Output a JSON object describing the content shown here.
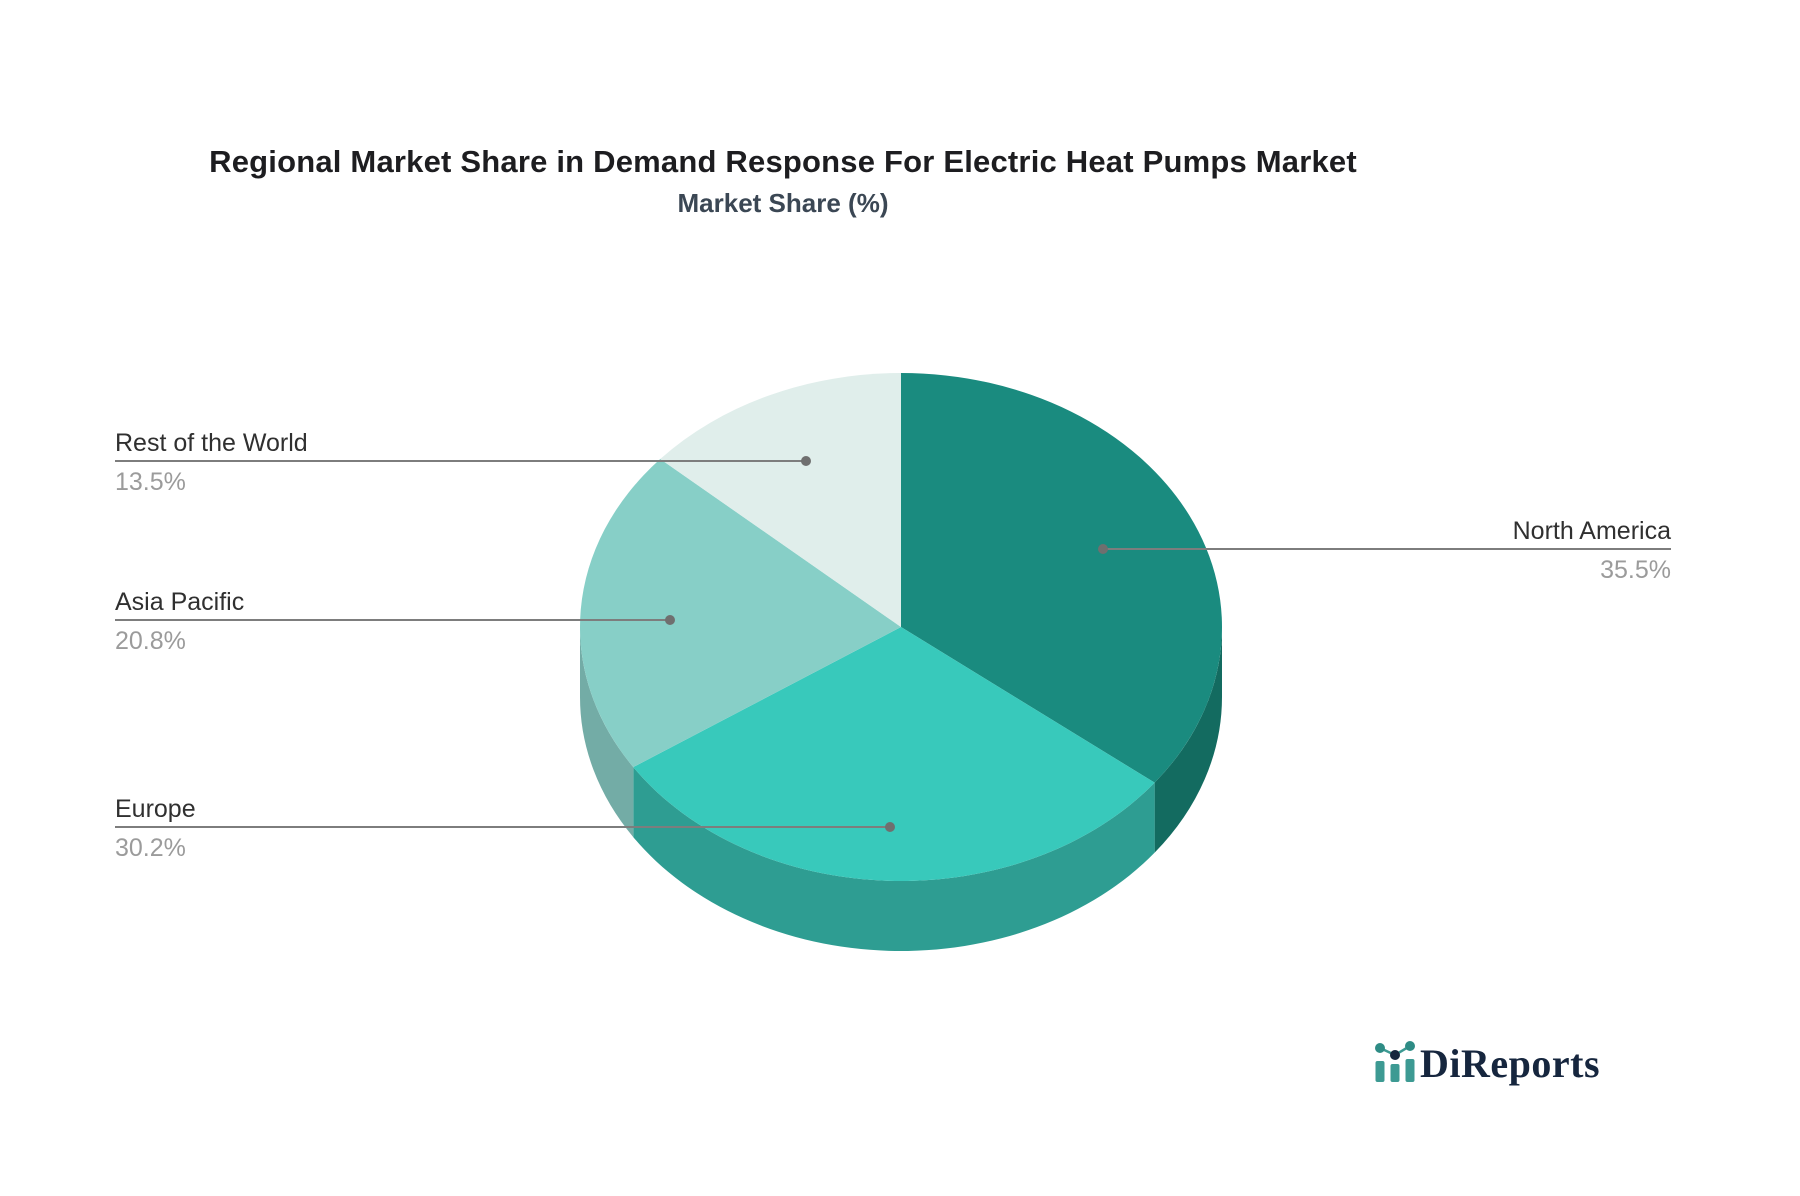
{
  "chart_data": {
    "type": "pie",
    "style": "3d",
    "title": "Regional Market Share in Demand Response For Electric Heat Pumps Market",
    "subtitle": "Market Share (%)",
    "unit": "%",
    "start_angle_deg": 0,
    "direction": "clockwise",
    "legend_position": "none",
    "connector_color": "#7d7d7d",
    "dot_color": "#6f6f6f",
    "slices": [
      {
        "label": "North America",
        "value": 35.5,
        "display": "35.5%",
        "color": "#1a8b7f",
        "side_color": "#136b60",
        "label_side": "right"
      },
      {
        "label": "Europe",
        "value": 30.2,
        "display": "30.2%",
        "color": "#38c9bb",
        "side_color": "#2e9d92",
        "label_side": "left"
      },
      {
        "label": "Asia Pacific",
        "value": 20.8,
        "display": "20.8%",
        "color": "#87cfc7",
        "side_color": "#73aca6",
        "label_side": "left"
      },
      {
        "label": "Rest of the World",
        "value": 13.5,
        "display": "13.5%",
        "color": "#e0eeeb",
        "side_color": "#c9deda",
        "label_side": "left"
      }
    ]
  },
  "branding": {
    "logo_text": "DiReports",
    "logo_icon": "bar-chart-icon",
    "logo_text_color": "#16263e",
    "logo_accent_color": "#3d9a93"
  }
}
